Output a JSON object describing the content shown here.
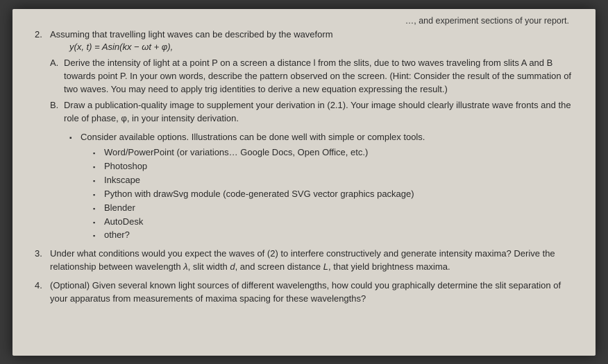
{
  "partial_top": "…, and experiment sections of your report.",
  "q2": {
    "num": "2.",
    "intro": "Assuming that travelling light waves can be described by the waveform",
    "formula": "y(x, t) = Asin(kx − ωt + φ),",
    "A": {
      "letter": "A.",
      "text": "Derive the intensity of light at a point P on a screen a distance l from the slits, due to two waves traveling from slits A and B towards point P. In your own words, describe the pattern observed on the screen. (Hint: Consider the result of the summation of two waves. You may need to apply trig identities to derive a new equation expressing the result.)"
    },
    "B": {
      "letter": "B.",
      "text": "Draw a publication-quality image to supplement your derivation in (2.1). Your image should clearly illustrate wave fronts and the role of phase, φ, in your intensity derivation."
    },
    "bullet_intro": "Consider available options. Illustrations can be done well with simple or complex tools.",
    "tools": [
      "Word/PowerPoint (or variations… Google Docs, Open Office, etc.)",
      "Photoshop",
      "Inkscape",
      "Python with drawSvg module (code-generated SVG vector graphics package)",
      "Blender",
      "AutoDesk",
      "other?"
    ]
  },
  "q3": {
    "num": "3.",
    "text_a": "Under what conditions would you expect the waves of (2) to interfere constructively and generate intensity maxima? Derive the relationship between wavelength ",
    "lambda": "λ",
    "text_b": ", slit width ",
    "d": "d",
    "text_c": ", and screen distance ",
    "L": "L",
    "text_d": ", that yield brightness maxima."
  },
  "q4": {
    "num": "4.",
    "text": "(Optional) Given several known light sources of different wavelengths, how could you graphically determine the slit separation of your apparatus from measurements of maxima spacing for these wavelengths?"
  }
}
